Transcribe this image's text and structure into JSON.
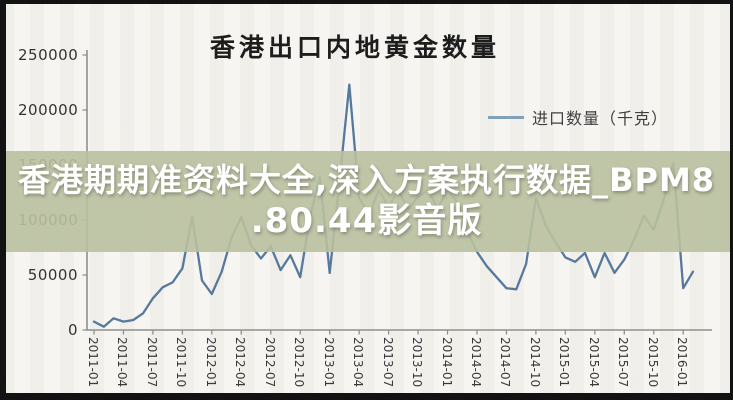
{
  "overlay": {
    "line1": "香港期期准资料大全,深入方案执行数据_BPM8",
    "line2": ".80.44影音版",
    "background_color": "#b9c09f",
    "text_color": "#ffffff"
  },
  "chart_data": {
    "type": "line",
    "title": "香港出口内地黄金数量",
    "legend": {
      "label": "进口数量（千克）",
      "swatch_color": "#7ea2bc",
      "position": "right-upper"
    },
    "line_color": "#56799c",
    "axis_color": "#8f8f8f",
    "grid": false,
    "ylim": [
      0,
      250000
    ],
    "y_ticks": [
      0,
      50000,
      100000,
      150000,
      200000,
      250000
    ],
    "x_tick_labels": [
      "2011-01",
      "2011-04",
      "2011-07",
      "2011-10",
      "2012-01",
      "2012-04",
      "2012-07",
      "2012-10",
      "2013-01",
      "2013-04",
      "2013-07",
      "2013-10",
      "2014-01",
      "2014-04",
      "2014-07",
      "2014-10",
      "2015-01",
      "2015-04",
      "2015-07",
      "2015-10",
      "2016-01"
    ],
    "x": [
      "2011-01",
      "2011-02",
      "2011-03",
      "2011-04",
      "2011-05",
      "2011-06",
      "2011-07",
      "2011-08",
      "2011-09",
      "2011-10",
      "2011-11",
      "2011-12",
      "2012-01",
      "2012-02",
      "2012-03",
      "2012-04",
      "2012-05",
      "2012-06",
      "2012-07",
      "2012-08",
      "2012-09",
      "2012-10",
      "2012-11",
      "2012-12",
      "2013-01",
      "2013-02",
      "2013-03",
      "2013-04",
      "2013-05",
      "2013-06",
      "2013-07",
      "2013-08",
      "2013-09",
      "2013-10",
      "2013-11",
      "2013-12",
      "2014-01",
      "2014-02",
      "2014-03",
      "2014-04",
      "2014-05",
      "2014-06",
      "2014-07",
      "2014-08",
      "2014-09",
      "2014-10",
      "2014-11",
      "2014-12",
      "2015-01",
      "2015-02",
      "2015-03",
      "2015-04",
      "2015-05",
      "2015-06",
      "2015-07",
      "2015-08",
      "2015-09",
      "2015-10",
      "2015-11",
      "2015-12",
      "2016-01",
      "2016-02"
    ],
    "values": [
      7600,
      3000,
      10600,
      7600,
      9100,
      15200,
      28800,
      38800,
      43300,
      56100,
      102700,
      45000,
      32700,
      53000,
      84000,
      102700,
      77000,
      65000,
      76000,
      54500,
      68000,
      48000,
      102700,
      139000,
      51800,
      135000,
      223000,
      120000,
      104500,
      127000,
      112000,
      127000,
      110000,
      121000,
      127000,
      111000,
      127000,
      116000,
      90000,
      71000,
      58000,
      48000,
      38000,
      37000,
      60000,
      120000,
      95000,
      80000,
      66000,
      62000,
      70000,
      48000,
      70000,
      52000,
      64000,
      82000,
      104000,
      91000,
      118000,
      152000,
      38000,
      53000
    ]
  }
}
